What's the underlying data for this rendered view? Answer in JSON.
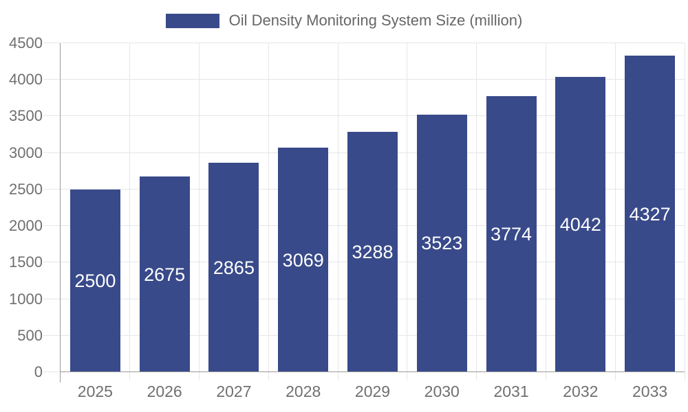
{
  "chart_data": {
    "type": "bar",
    "title": "Oil Density Monitoring System Size (million)",
    "legend": {
      "label": "Oil Density Monitoring System Size (million)",
      "position": "top"
    },
    "categories": [
      "2025",
      "2026",
      "2027",
      "2028",
      "2029",
      "2030",
      "2031",
      "2032",
      "2033"
    ],
    "series": [
      {
        "name": "Oil Density Monitoring System Size (million)",
        "values": [
          2500,
          2675,
          2865,
          3069,
          3288,
          3523,
          3774,
          4042,
          4327
        ]
      }
    ],
    "value_labels_shown": true,
    "xlabel": "",
    "ylabel": "",
    "ylim": [
      0,
      4500
    ],
    "y_tick_step": 500,
    "y_ticks": [
      0,
      500,
      1000,
      1500,
      2000,
      2500,
      3000,
      3500,
      4000,
      4500
    ],
    "grid": "horizontal-and-vertical",
    "colors": {
      "bar": "#394A8A",
      "value_label": "#FFFFFF",
      "axis_label": "#6F6F6F",
      "legend_label": "#666666",
      "grid_line": "#E6E6E6",
      "axis_line": "#9A9A9A",
      "background": "#FFFFFF"
    }
  }
}
